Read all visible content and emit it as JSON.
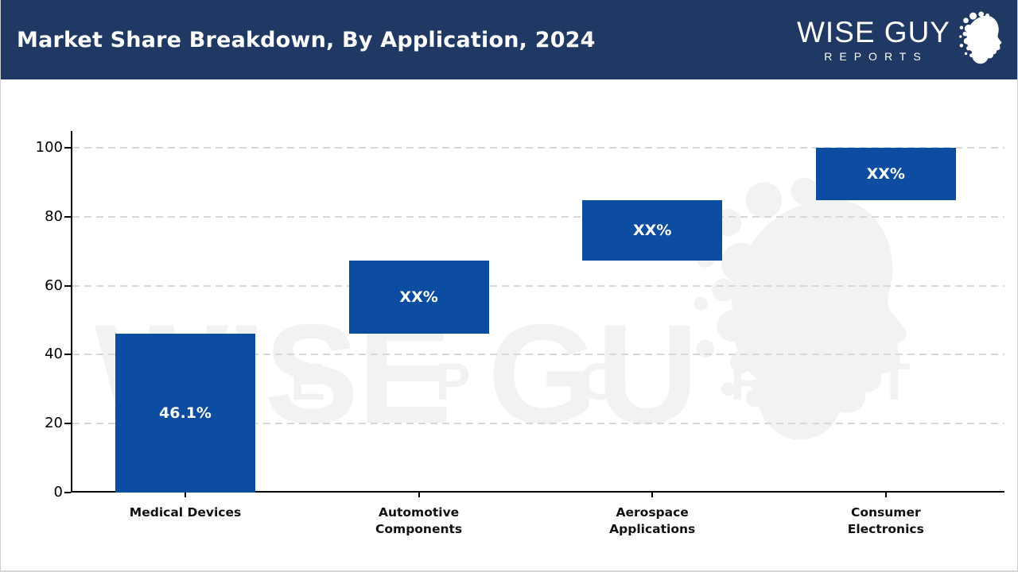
{
  "header": {
    "title": "Market Share Breakdown, By Application, 2024",
    "logo": {
      "line1": "WISE GUY",
      "line2": "REPORTS"
    }
  },
  "watermark": {
    "line1": "WISE GU Y",
    "line2": "R E P O R T S"
  },
  "chart_data": {
    "type": "bar",
    "subtype": "waterfall",
    "title": "Market Share Breakdown, By Application, 2024",
    "categories": [
      [
        "Medical Devices"
      ],
      [
        "Automotive",
        "Components"
      ],
      [
        "Aerospace",
        "Applications"
      ],
      [
        "Consumer",
        "Electronics"
      ]
    ],
    "segments": [
      {
        "category": "Medical Devices",
        "start": 0,
        "end": 46.1,
        "label": "46.1%"
      },
      {
        "category": "Automotive Components",
        "start": 46.1,
        "end": 67.3,
        "label": "XX%"
      },
      {
        "category": "Aerospace Applications",
        "start": 67.3,
        "end": 84.8,
        "label": "XX%"
      },
      {
        "category": "Consumer Electronics",
        "start": 84.8,
        "end": 100,
        "label": "XX%"
      }
    ],
    "y_ticks": [
      0,
      20,
      40,
      60,
      80,
      100
    ],
    "ylim": [
      0,
      104.8
    ],
    "grid": "horizontal-dashed",
    "legend": "none",
    "colors": {
      "bar": "#0c4da2",
      "grid": "#d8d8d8",
      "axis": "#000000",
      "value_label": "#ffffff"
    }
  },
  "colors": {
    "header_bg": "#1f3864",
    "body_bg": "#ffffff",
    "watermark": "#f1f2f4"
  }
}
